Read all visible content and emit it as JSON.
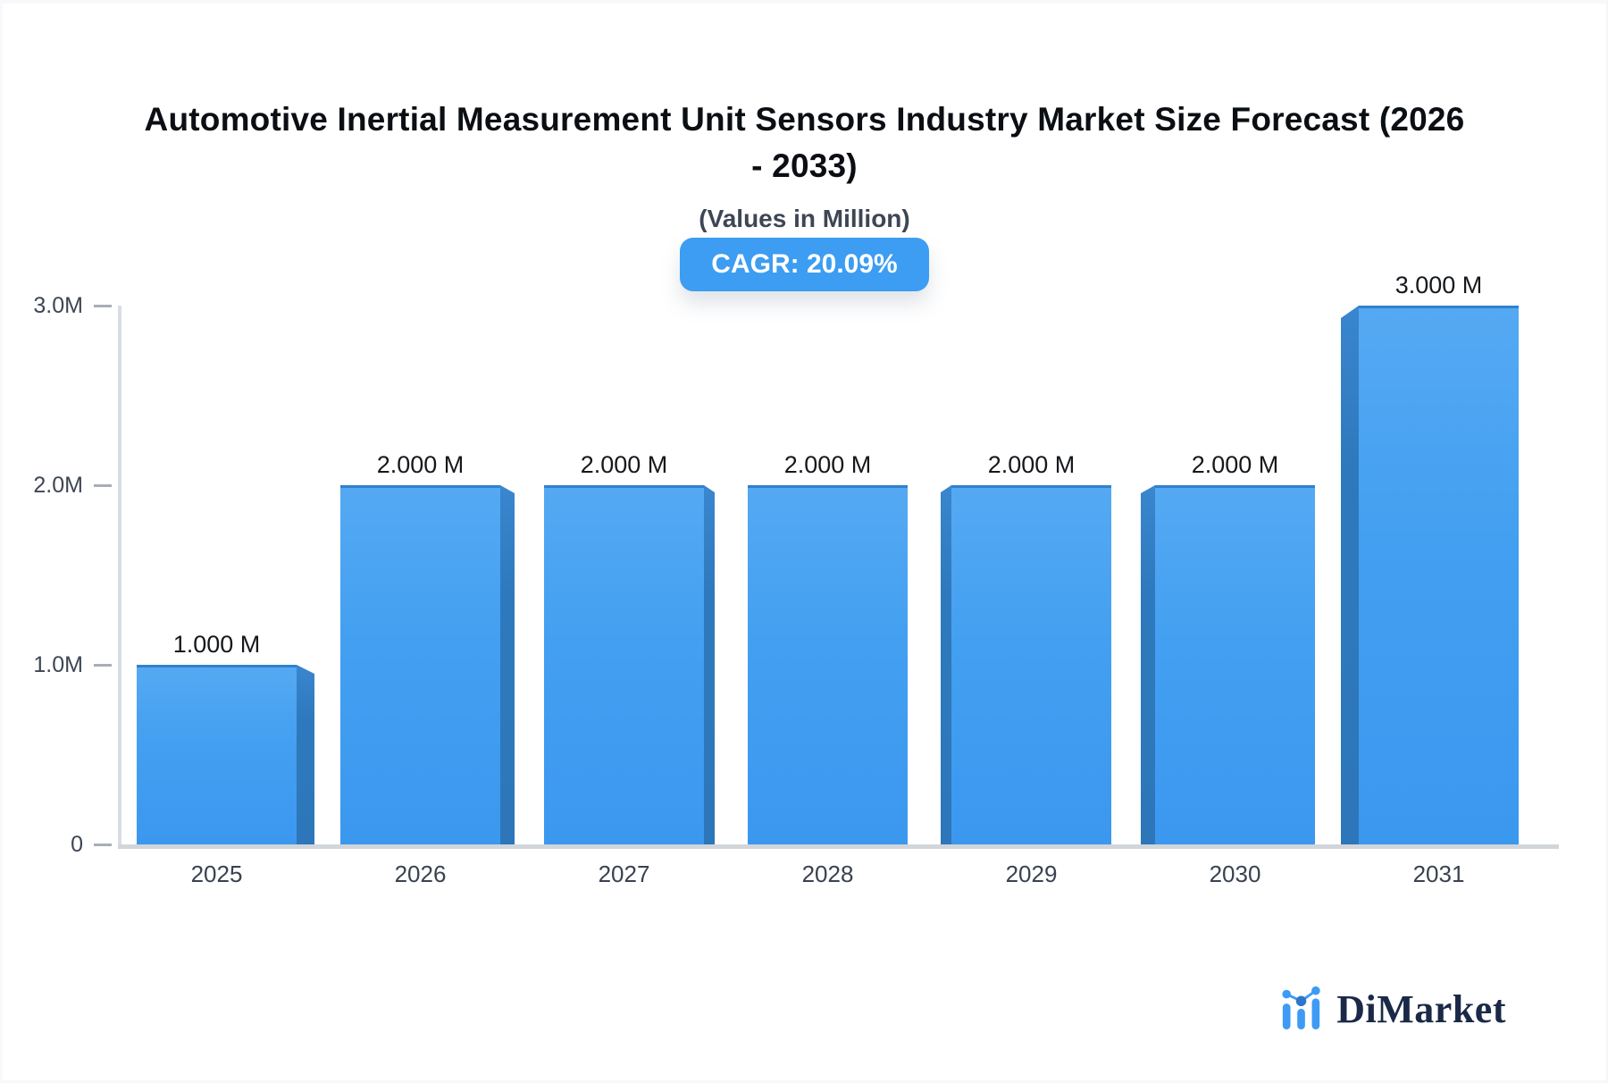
{
  "header": {
    "title_line1": "Automotive Inertial Measurement Unit Sensors Industry Market Size Forecast (2026",
    "title_line2": "- 2033)",
    "subtitle": "(Values in Million)",
    "cagr_badge": "CAGR: 20.09%"
  },
  "colors": {
    "accent_blue": "#3c9df2",
    "bar_face": "#3e9bf0",
    "bar_face_light": "#55a9f2",
    "bar_side": "#2e79bd",
    "axis_gray": "#d9dce1",
    "tick_gray": "#a9aeb6",
    "title_text": "#0b0e13",
    "subtitle_text": "#3d4654",
    "logo_navy": "#1a2947",
    "logo_blue": "#3d9bf5"
  },
  "chart_data": {
    "type": "bar",
    "title": "Automotive Inertial Measurement Unit Sensors Industry Market Size Forecast (2026 - 2033)",
    "subtitle": "(Values in Million)",
    "cagr": "20.09%",
    "unit": "Million",
    "categories": [
      "2025",
      "2026",
      "2027",
      "2028",
      "2029",
      "2030",
      "2031"
    ],
    "values": [
      1.0,
      2.0,
      2.0,
      2.0,
      2.0,
      2.0,
      3.0
    ],
    "labels": [
      "1.000 M",
      "2.000 M",
      "2.000 M",
      "2.000 M",
      "2.000 M",
      "2.000 M",
      "3.000 M"
    ],
    "yticks": [
      {
        "label": "3.0M",
        "value": 3
      },
      {
        "label": "2.0M",
        "value": 2
      },
      {
        "label": "1.0M",
        "value": 1
      },
      {
        "label": "0",
        "value": 0
      }
    ],
    "ylim": [
      0,
      3
    ],
    "xlabel": "",
    "ylabel": "",
    "grid": false,
    "legend": false,
    "style": "3d-perspective-bars"
  },
  "logo": {
    "text": "DiMarket"
  }
}
